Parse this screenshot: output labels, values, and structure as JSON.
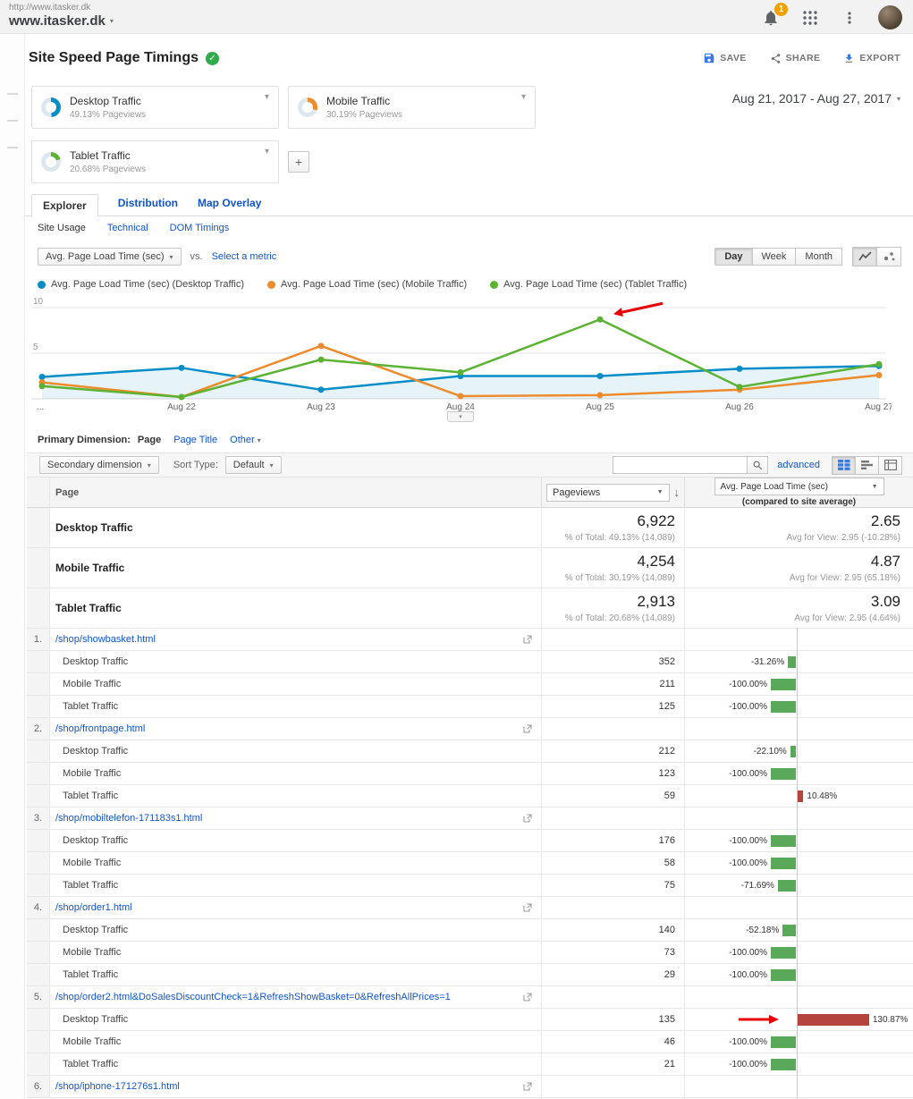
{
  "browser_header": {
    "url": "http://www.itasker.dk",
    "site_name": "www.itasker.dk",
    "notification_count": "1"
  },
  "header": {
    "title": "Site Speed Page Timings",
    "save_label": "SAVE",
    "share_label": "SHARE",
    "export_label": "EXPORT",
    "date_range": "Aug 21, 2017 - Aug 27, 2017"
  },
  "segments": {
    "cards": [
      {
        "name": "Desktop Traffic",
        "subtitle": "49.13% Pageviews",
        "percent": 49.13,
        "color": "#058dc7"
      },
      {
        "name": "Mobile Traffic",
        "subtitle": "30.19% Pageviews",
        "percent": 30.19,
        "color": "#ed8b2d"
      },
      {
        "name": "Tablet Traffic",
        "subtitle": "20.68% Pageviews",
        "percent": 20.68,
        "color": "#5cb232"
      }
    ],
    "add_label": "+"
  },
  "tabs": {
    "explorer": "Explorer",
    "distribution": "Distribution",
    "map_overlay": "Map Overlay"
  },
  "subtabs": {
    "site_usage": "Site Usage",
    "technical": "Technical",
    "dom_timings": "DOM Timings"
  },
  "metric_bar": {
    "metric": "Avg. Page Load Time (sec)",
    "vs_label": "vs.",
    "select_metric": "Select a metric",
    "day": "Day",
    "week": "Week",
    "month": "Month"
  },
  "legend": [
    {
      "label": "Avg. Page Load Time (sec) (Desktop Traffic)",
      "color": "#058dc7"
    },
    {
      "label": "Avg. Page Load Time (sec) (Mobile Traffic)",
      "color": "#ed8b2d"
    },
    {
      "label": "Avg. Page Load Time (sec) (Tablet Traffic)",
      "color": "#5cb232"
    }
  ],
  "chart_data": {
    "type": "line",
    "x": [
      "...",
      "Aug 22",
      "Aug 23",
      "Aug 24",
      "Aug 25",
      "Aug 26",
      "Aug 27"
    ],
    "ylim": [
      0,
      10
    ],
    "yticks": [
      5,
      10
    ],
    "series": [
      {
        "name": "Avg. Page Load Time (sec) (Desktop Traffic)",
        "color": "#058dc7",
        "area": true,
        "values": [
          2.4,
          3.4,
          1.0,
          2.5,
          2.5,
          3.3,
          3.6
        ]
      },
      {
        "name": "Avg. Page Load Time (sec) (Mobile Traffic)",
        "color": "#ed8b2d",
        "values": [
          1.8,
          0.2,
          5.8,
          0.3,
          0.4,
          1.0,
          2.6
        ]
      },
      {
        "name": "Avg. Page Load Time (sec) (Tablet Traffic)",
        "color": "#5cb232",
        "values": [
          1.4,
          0.2,
          4.3,
          2.9,
          8.7,
          1.3,
          3.8
        ]
      }
    ],
    "annotation": {
      "series_index": 2,
      "x_index": 4
    }
  },
  "primary_dimension": {
    "label": "Primary Dimension:",
    "active": "Page",
    "options": [
      "Page",
      "Page Title",
      "Other"
    ]
  },
  "toolbar": {
    "secondary_dimension": "Secondary dimension",
    "sort_type_label": "Sort Type:",
    "sort_type_value": "Default",
    "advanced_label": "advanced",
    "search_value": ""
  },
  "table": {
    "columns": {
      "page": "Page",
      "pageviews": "Pageviews",
      "load_time": "Avg. Page Load Time (sec)",
      "load_time_sub": "(compared to site average)"
    },
    "bar_colors": {
      "negative": "#5aa85a",
      "positive": "#b5443c"
    },
    "summary": [
      {
        "name": "Desktop Traffic",
        "pageviews": "6,922",
        "pageviews_sub": "% of Total: 49.13% (14,089)",
        "value": "2.65",
        "value_sub": "Avg for View: 2.95 (-10.28%)"
      },
      {
        "name": "Mobile Traffic",
        "pageviews": "4,254",
        "pageviews_sub": "% of Total: 30.19% (14,089)",
        "value": "4.87",
        "value_sub": "Avg for View: 2.95 (65.18%)"
      },
      {
        "name": "Tablet Traffic",
        "pageviews": "2,913",
        "pageviews_sub": "% of Total: 20.68% (14,089)",
        "value": "3.09",
        "value_sub": "Avg for View: 2.95 (4.64%)"
      }
    ],
    "rows": [
      {
        "index": "1.",
        "url": "/shop/showbasket.html",
        "segments": [
          {
            "name": "Desktop Traffic",
            "pageviews": "352",
            "delta": "-31.26%",
            "delta_value": -31.26
          },
          {
            "name": "Mobile Traffic",
            "pageviews": "211",
            "delta": "-100.00%",
            "delta_value": -100
          },
          {
            "name": "Tablet Traffic",
            "pageviews": "125",
            "delta": "-100.00%",
            "delta_value": -100
          }
        ]
      },
      {
        "index": "2.",
        "url": "/shop/frontpage.html",
        "segments": [
          {
            "name": "Desktop Traffic",
            "pageviews": "212",
            "delta": "-22.10%",
            "delta_value": -22.1
          },
          {
            "name": "Mobile Traffic",
            "pageviews": "123",
            "delta": "-100.00%",
            "delta_value": -100
          },
          {
            "name": "Tablet Traffic",
            "pageviews": "59",
            "delta": "10.48%",
            "delta_value": 10.48
          }
        ]
      },
      {
        "index": "3.",
        "url": "/shop/mobiltelefon-171183s1.html",
        "segments": [
          {
            "name": "Desktop Traffic",
            "pageviews": "176",
            "delta": "-100.00%",
            "delta_value": -100
          },
          {
            "name": "Mobile Traffic",
            "pageviews": "58",
            "delta": "-100.00%",
            "delta_value": -100
          },
          {
            "name": "Tablet Traffic",
            "pageviews": "75",
            "delta": "-71.69%",
            "delta_value": -71.69
          }
        ]
      },
      {
        "index": "4.",
        "url": "/shop/order1.html",
        "segments": [
          {
            "name": "Desktop Traffic",
            "pageviews": "140",
            "delta": "-52.18%",
            "delta_value": -52.18
          },
          {
            "name": "Mobile Traffic",
            "pageviews": "73",
            "delta": "-100.00%",
            "delta_value": -100
          },
          {
            "name": "Tablet Traffic",
            "pageviews": "29",
            "delta": "-100.00%",
            "delta_value": -100
          }
        ]
      },
      {
        "index": "5.",
        "url": "/shop/order2.html&DoSalesDiscountCheck=1&RefreshShowBasket=0&RefreshAllPrices=1",
        "segments": [
          {
            "name": "Desktop Traffic",
            "pageviews": "135",
            "delta": "130.87%",
            "delta_value": 130.87,
            "arrow": true
          },
          {
            "name": "Mobile Traffic",
            "pageviews": "46",
            "delta": "-100.00%",
            "delta_value": -100
          },
          {
            "name": "Tablet Traffic",
            "pageviews": "21",
            "delta": "-100.00%",
            "delta_value": -100
          }
        ]
      },
      {
        "index": "6.",
        "url": "/shop/iphone-171276s1.html",
        "segments": []
      }
    ]
  }
}
